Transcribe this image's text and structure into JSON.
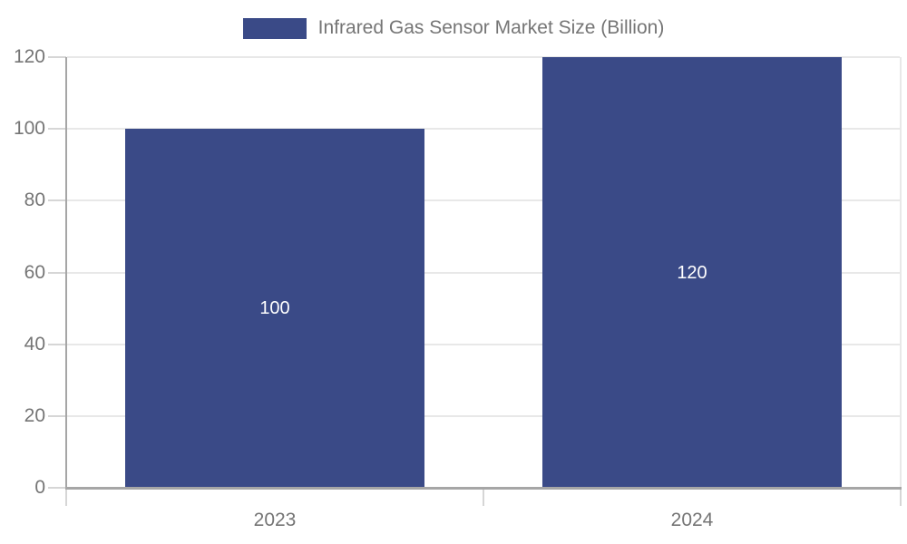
{
  "chart_data": {
    "type": "bar",
    "legend": "Infrared Gas Sensor Market Size (Billion)",
    "categories": [
      "2023",
      "2024"
    ],
    "values": [
      100,
      120
    ],
    "value_labels": [
      "100",
      "120"
    ],
    "ylim": [
      0,
      120
    ],
    "yticks": [
      0,
      20,
      40,
      60,
      80,
      100,
      120
    ],
    "grid": true,
    "legend_position": "top-center",
    "colors": {
      "bar": "#3A4A87",
      "axis_label": "#757575",
      "legend_text": "#757575",
      "value_label": "#ffffff",
      "gridline": "#e8e8e8",
      "axis_line": "#a6a6a6",
      "tick": "#d6d6d6",
      "background": "#ffffff"
    }
  }
}
